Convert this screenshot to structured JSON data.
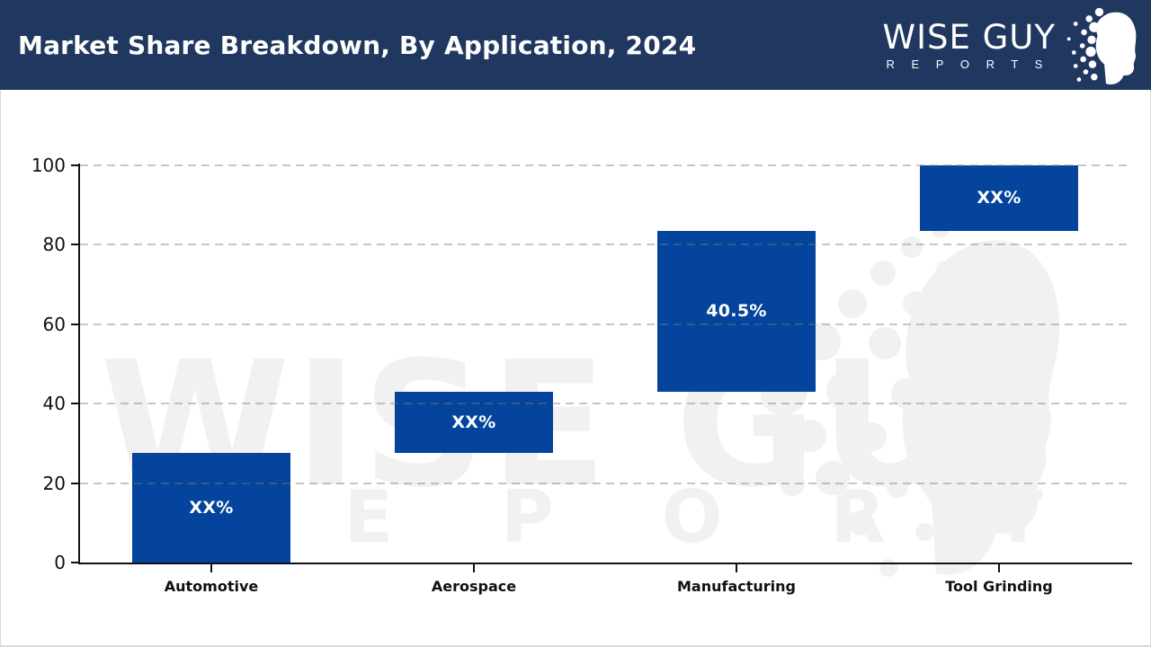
{
  "header": {
    "title": "Market Share Breakdown, By Application, 2024",
    "logo": {
      "line1": "WISE GUY",
      "line2": "R E P O R T S"
    }
  },
  "watermark": {
    "line1": "WISE GU",
    "line2": "R E P O R T S"
  },
  "colors": {
    "header_bg": "#20375f",
    "bar": "#04449c",
    "grid_gray": "#cfcfcf",
    "axis": "#111111",
    "watermark_gray": "#f1f1f1",
    "bar_label_text": "#ffffff",
    "title_text": "#ffffff"
  },
  "chart_data": {
    "type": "bar",
    "subtype": "waterfall-floating-segments",
    "title": "Market Share Breakdown, By Application, 2024",
    "categories": [
      "Automotive",
      "Aerospace",
      "Manufacturing",
      "Tool Grinding"
    ],
    "series": [
      {
        "name": "Market Share %",
        "values": [
          27.5,
          15.5,
          40.5,
          16.5
        ],
        "bases": [
          0,
          27.5,
          43,
          83.5
        ]
      }
    ],
    "bar_labels": [
      "XX%",
      "XX%",
      "40.5%",
      "XX%"
    ],
    "xlabel": "",
    "ylabel": "",
    "ylim": [
      0,
      100
    ],
    "yticks": [
      0,
      20,
      40,
      60,
      80,
      100
    ],
    "grid": "horizontal-dashed",
    "legend": "none"
  }
}
